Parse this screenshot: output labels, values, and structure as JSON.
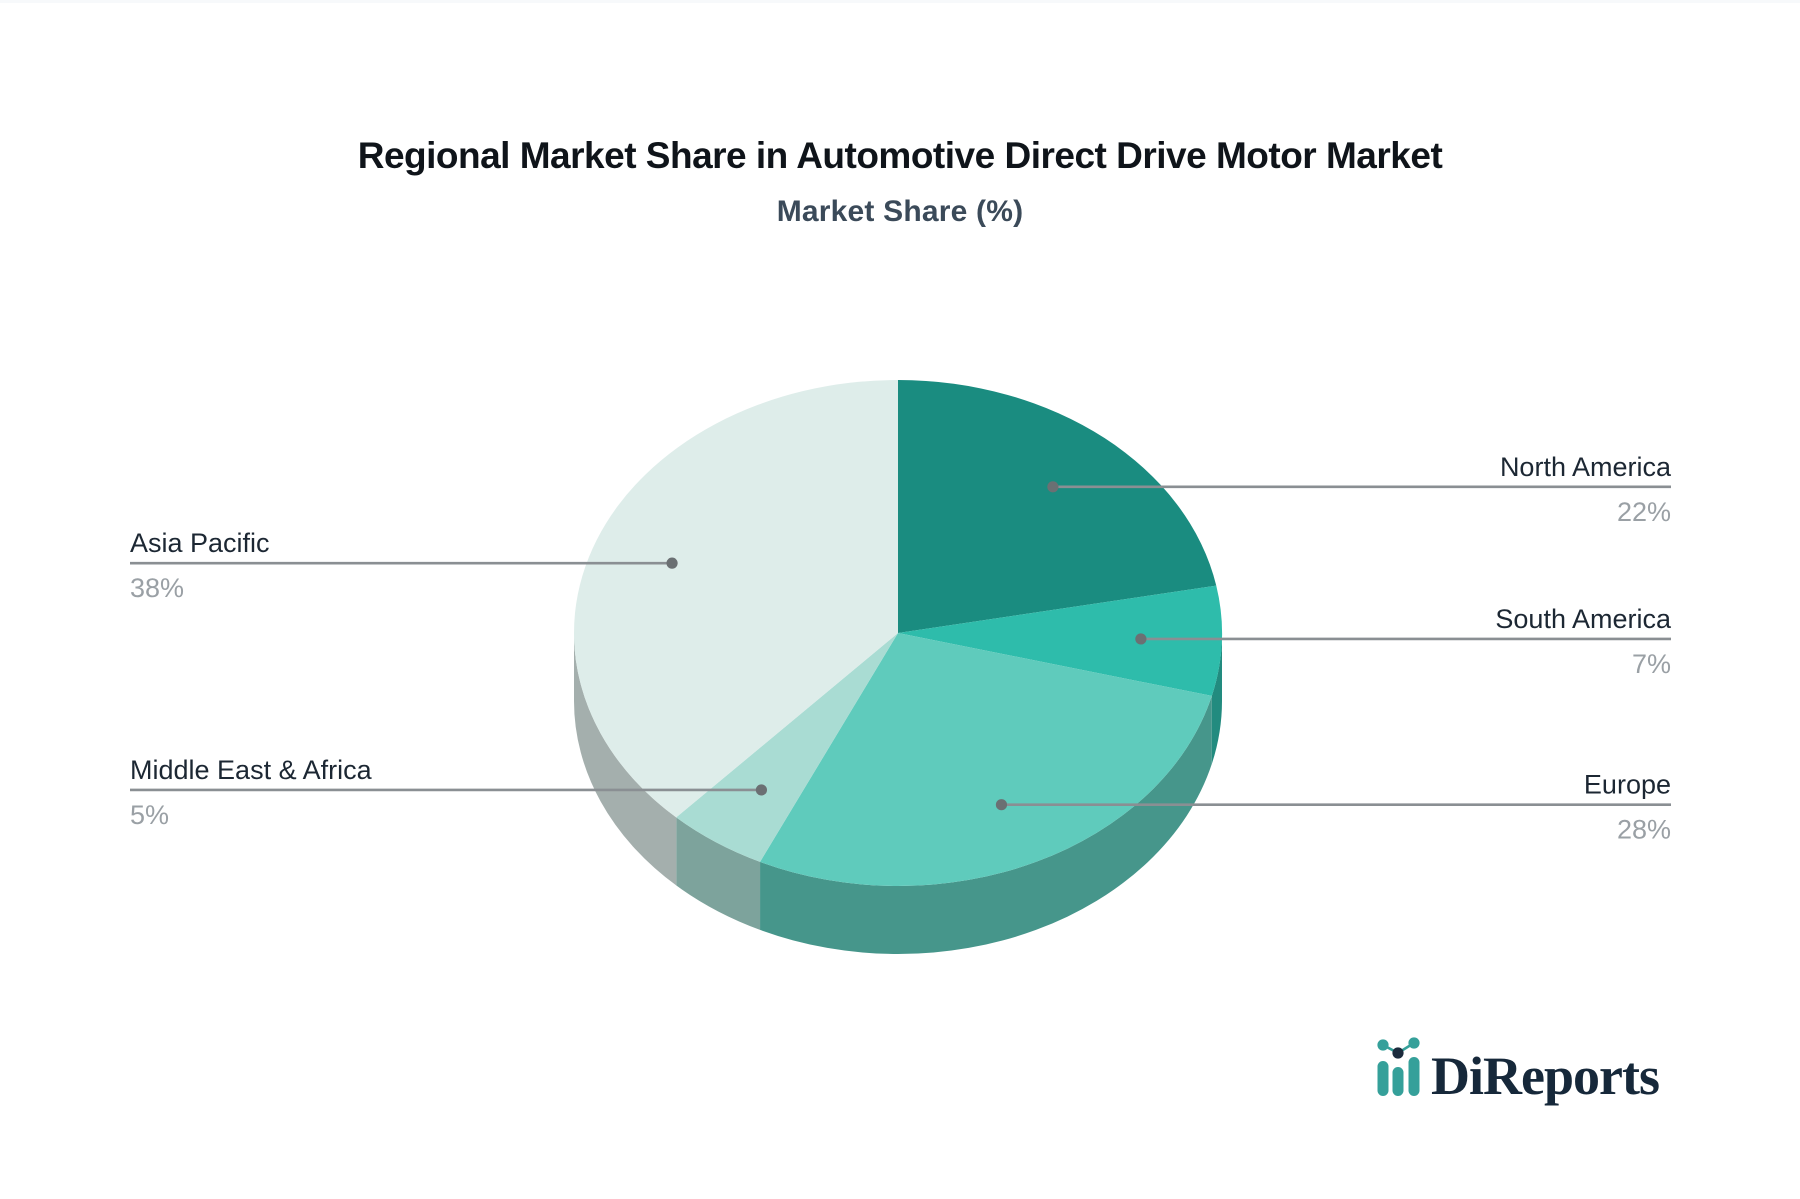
{
  "header": {
    "title": "Regional Market Share in Automotive Direct Drive Motor Market",
    "subtitle": "Market Share (%)"
  },
  "chart_data": {
    "type": "pie",
    "title": "Regional Market Share in Automotive Direct Drive Motor Market",
    "subtitle": "Market Share (%)",
    "unit": "%",
    "style": "pseudo-3d",
    "direction": "clockwise",
    "start_angle_deg": 0,
    "slices": [
      {
        "label": "North America",
        "value": 22,
        "display": "22%",
        "color": "#1a8c80",
        "label_side": "right"
      },
      {
        "label": "South America",
        "value": 7,
        "display": "7%",
        "color": "#2ebcab",
        "label_side": "right"
      },
      {
        "label": "Europe",
        "value": 28,
        "display": "28%",
        "color": "#5fcbbc",
        "label_side": "right"
      },
      {
        "label": "Middle East & Africa",
        "value": 5,
        "display": "5%",
        "color": "#a9dcd3",
        "label_side": "left"
      },
      {
        "label": "Asia Pacific",
        "value": 38,
        "display": "38%",
        "color": "#deedea",
        "label_side": "left"
      }
    ],
    "legend": "none",
    "label_text_color": "#1c2733",
    "value_text_color": "#9aa0a5",
    "connector_color": "#8a8f93",
    "connector_dot_color": "#6b7073"
  },
  "logo": {
    "text": "DiReports",
    "icon": "bar-chart-logo-icon",
    "text_color": "#16283a",
    "accent_color": "#35a09a",
    "accent_dark": "#1b2b3d"
  }
}
